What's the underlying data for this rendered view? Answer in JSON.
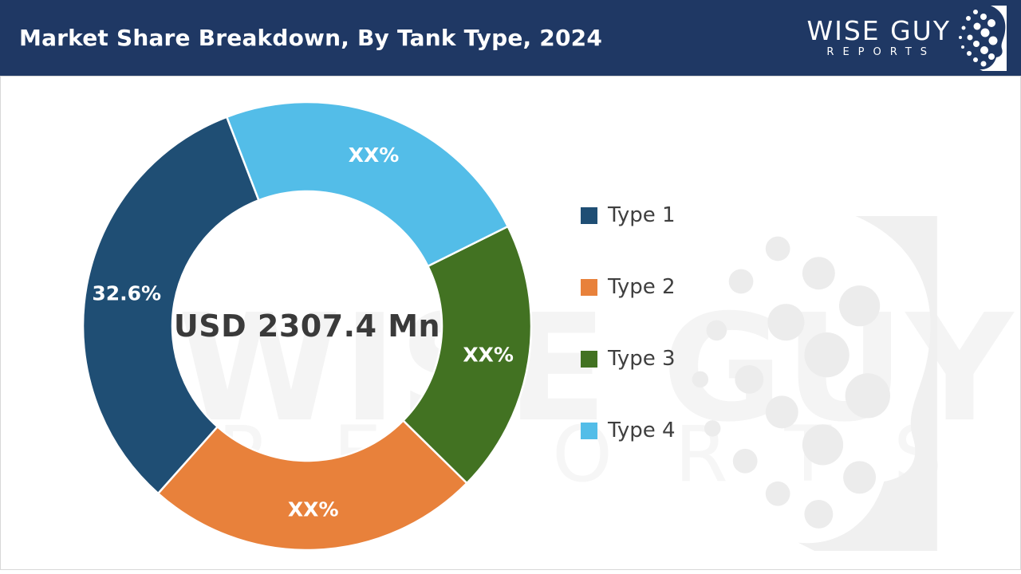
{
  "header": {
    "title": "Market Share Breakdown, By Tank Type, 2024",
    "logo": {
      "line1": "WISE GUY",
      "line2": "REPORTS"
    }
  },
  "watermark": {
    "line1": "WISE GUY",
    "line2": "REPORTS"
  },
  "chart_data": {
    "type": "pie",
    "subtype": "donut",
    "title": "Market Share Breakdown, By Tank Type, 2024",
    "center_label": "USD 2307.4 Mn",
    "start_angle_deg": 111,
    "direction": "counterclockwise",
    "legend_position": "right",
    "categories": [
      "Type 1",
      "Type 2",
      "Type 3",
      "Type 4"
    ],
    "values": [
      32.6,
      24.2,
      19.7,
      23.5
    ],
    "segments": [
      {
        "name": "Type 1",
        "value_pct": 32.6,
        "display_label": "32.6%",
        "color": "#1F4E74"
      },
      {
        "name": "Type 2",
        "value_pct": 24.2,
        "display_label": "XX%",
        "color": "#E8813B"
      },
      {
        "name": "Type 3",
        "value_pct": 19.7,
        "display_label": "XX%",
        "color": "#427222"
      },
      {
        "name": "Type 4",
        "value_pct": 23.5,
        "display_label": "XX%",
        "color": "#53BDE8"
      }
    ]
  },
  "legend": {
    "items": [
      {
        "label": "Type 1",
        "color": "#1F4E74"
      },
      {
        "label": "Type 2",
        "color": "#E8813B"
      },
      {
        "label": "Type 3",
        "color": "#427222"
      },
      {
        "label": "Type 4",
        "color": "#53BDE8"
      }
    ]
  },
  "colors": {
    "header_bar": "#1F3864",
    "card_border": "#d8d8d8",
    "center_text": "#3a3a3a",
    "watermark": "#f4f4f4"
  }
}
